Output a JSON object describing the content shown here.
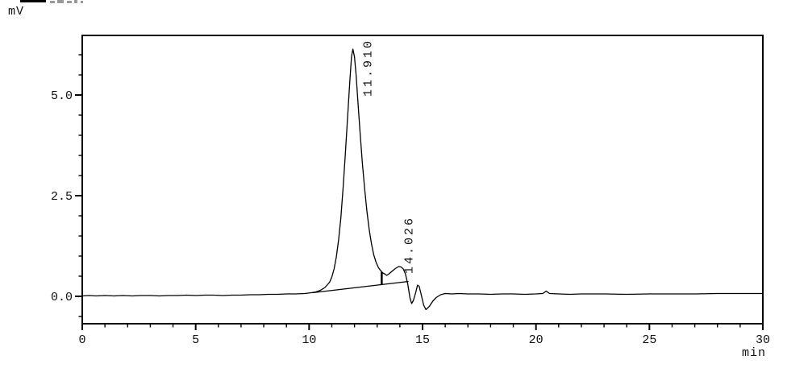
{
  "legend": {
    "swatch_color": "#000000",
    "label_fragment": ""
  },
  "chart_data": {
    "type": "line",
    "title": "",
    "xlabel": "min",
    "ylabel": "mV",
    "xlim": [
      0,
      30
    ],
    "ylim": [
      -0.68,
      6.48
    ],
    "grid": false,
    "legend_position": "none",
    "line_color": "#000000",
    "x_ticks_major": [
      0,
      5,
      10,
      15,
      20,
      25,
      30
    ],
    "x_tick_labels": [
      "0",
      "5",
      "10",
      "15",
      "20",
      "25",
      "30"
    ],
    "x_minor_step": 1,
    "y_ticks_major": [
      0.0,
      2.5,
      5.0
    ],
    "y_tick_labels": [
      "0.0",
      "2.5",
      "5.0"
    ],
    "y_minor_step": 0.5,
    "peaks": [
      {
        "retention_time": "11.910",
        "apex_t": 11.93,
        "apex_mv": 6.14
      },
      {
        "retention_time": "14.026",
        "apex_t": 13.95,
        "apex_mv": 0.74
      }
    ],
    "integration_baseline": [
      [
        10.15,
        0.09
      ],
      [
        14.38,
        0.37
      ]
    ],
    "peak_separator": {
      "t": 13.2,
      "from_mv": 0.29,
      "to_mv": 0.6
    },
    "series": [
      {
        "name": "detector-signal",
        "points": [
          [
            0,
            0.01
          ],
          [
            0.3,
            0.02
          ],
          [
            0.6,
            0.01
          ],
          [
            1,
            0.02
          ],
          [
            1.4,
            0.01
          ],
          [
            1.8,
            0.02
          ],
          [
            2.2,
            0.01
          ],
          [
            2.6,
            0.02
          ],
          [
            3,
            0.02
          ],
          [
            3.4,
            0.01
          ],
          [
            3.8,
            0.02
          ],
          [
            4.2,
            0.02
          ],
          [
            4.6,
            0.03
          ],
          [
            5,
            0.02
          ],
          [
            5.4,
            0.03
          ],
          [
            5.8,
            0.03
          ],
          [
            6.2,
            0.02
          ],
          [
            6.6,
            0.03
          ],
          [
            7,
            0.03
          ],
          [
            7.4,
            0.04
          ],
          [
            7.8,
            0.04
          ],
          [
            8.2,
            0.05
          ],
          [
            8.6,
            0.05
          ],
          [
            9,
            0.06
          ],
          [
            9.4,
            0.06
          ],
          [
            9.8,
            0.07
          ],
          [
            10.1,
            0.09
          ],
          [
            10.3,
            0.11
          ],
          [
            10.5,
            0.15
          ],
          [
            10.7,
            0.22
          ],
          [
            10.9,
            0.35
          ],
          [
            11.0,
            0.48
          ],
          [
            11.1,
            0.68
          ],
          [
            11.2,
            0.98
          ],
          [
            11.3,
            1.4
          ],
          [
            11.4,
            1.95
          ],
          [
            11.5,
            2.7
          ],
          [
            11.6,
            3.55
          ],
          [
            11.7,
            4.5
          ],
          [
            11.8,
            5.4
          ],
          [
            11.87,
            5.95
          ],
          [
            11.93,
            6.14
          ],
          [
            12.0,
            5.95
          ],
          [
            12.07,
            5.5
          ],
          [
            12.15,
            4.85
          ],
          [
            12.25,
            4.05
          ],
          [
            12.35,
            3.3
          ],
          [
            12.45,
            2.65
          ],
          [
            12.55,
            2.1
          ],
          [
            12.65,
            1.65
          ],
          [
            12.75,
            1.3
          ],
          [
            12.85,
            1.03
          ],
          [
            12.95,
            0.85
          ],
          [
            13.05,
            0.72
          ],
          [
            13.15,
            0.64
          ],
          [
            13.25,
            0.58
          ],
          [
            13.35,
            0.55
          ],
          [
            13.42,
            0.52
          ],
          [
            13.5,
            0.55
          ],
          [
            13.65,
            0.62
          ],
          [
            13.8,
            0.69
          ],
          [
            13.95,
            0.74
          ],
          [
            14.05,
            0.73
          ],
          [
            14.15,
            0.68
          ],
          [
            14.25,
            0.55
          ],
          [
            14.35,
            0.3
          ],
          [
            14.45,
            -0.05
          ],
          [
            14.52,
            -0.18
          ],
          [
            14.6,
            -0.1
          ],
          [
            14.7,
            0.1
          ],
          [
            14.78,
            0.28
          ],
          [
            14.85,
            0.25
          ],
          [
            14.95,
            0.02
          ],
          [
            15.05,
            -0.22
          ],
          [
            15.15,
            -0.33
          ],
          [
            15.3,
            -0.25
          ],
          [
            15.45,
            -0.12
          ],
          [
            15.6,
            -0.03
          ],
          [
            15.8,
            0.04
          ],
          [
            16,
            0.07
          ],
          [
            16.3,
            0.06
          ],
          [
            16.6,
            0.07
          ],
          [
            17,
            0.06
          ],
          [
            17.5,
            0.06
          ],
          [
            18,
            0.05
          ],
          [
            18.5,
            0.06
          ],
          [
            19,
            0.06
          ],
          [
            19.5,
            0.05
          ],
          [
            20,
            0.06
          ],
          [
            20.3,
            0.07
          ],
          [
            20.45,
            0.13
          ],
          [
            20.6,
            0.07
          ],
          [
            21,
            0.06
          ],
          [
            21.5,
            0.05
          ],
          [
            22,
            0.06
          ],
          [
            23,
            0.06
          ],
          [
            24,
            0.05
          ],
          [
            25,
            0.06
          ],
          [
            26,
            0.06
          ],
          [
            27,
            0.06
          ],
          [
            28,
            0.07
          ],
          [
            29,
            0.07
          ],
          [
            30,
            0.07
          ]
        ]
      }
    ]
  }
}
